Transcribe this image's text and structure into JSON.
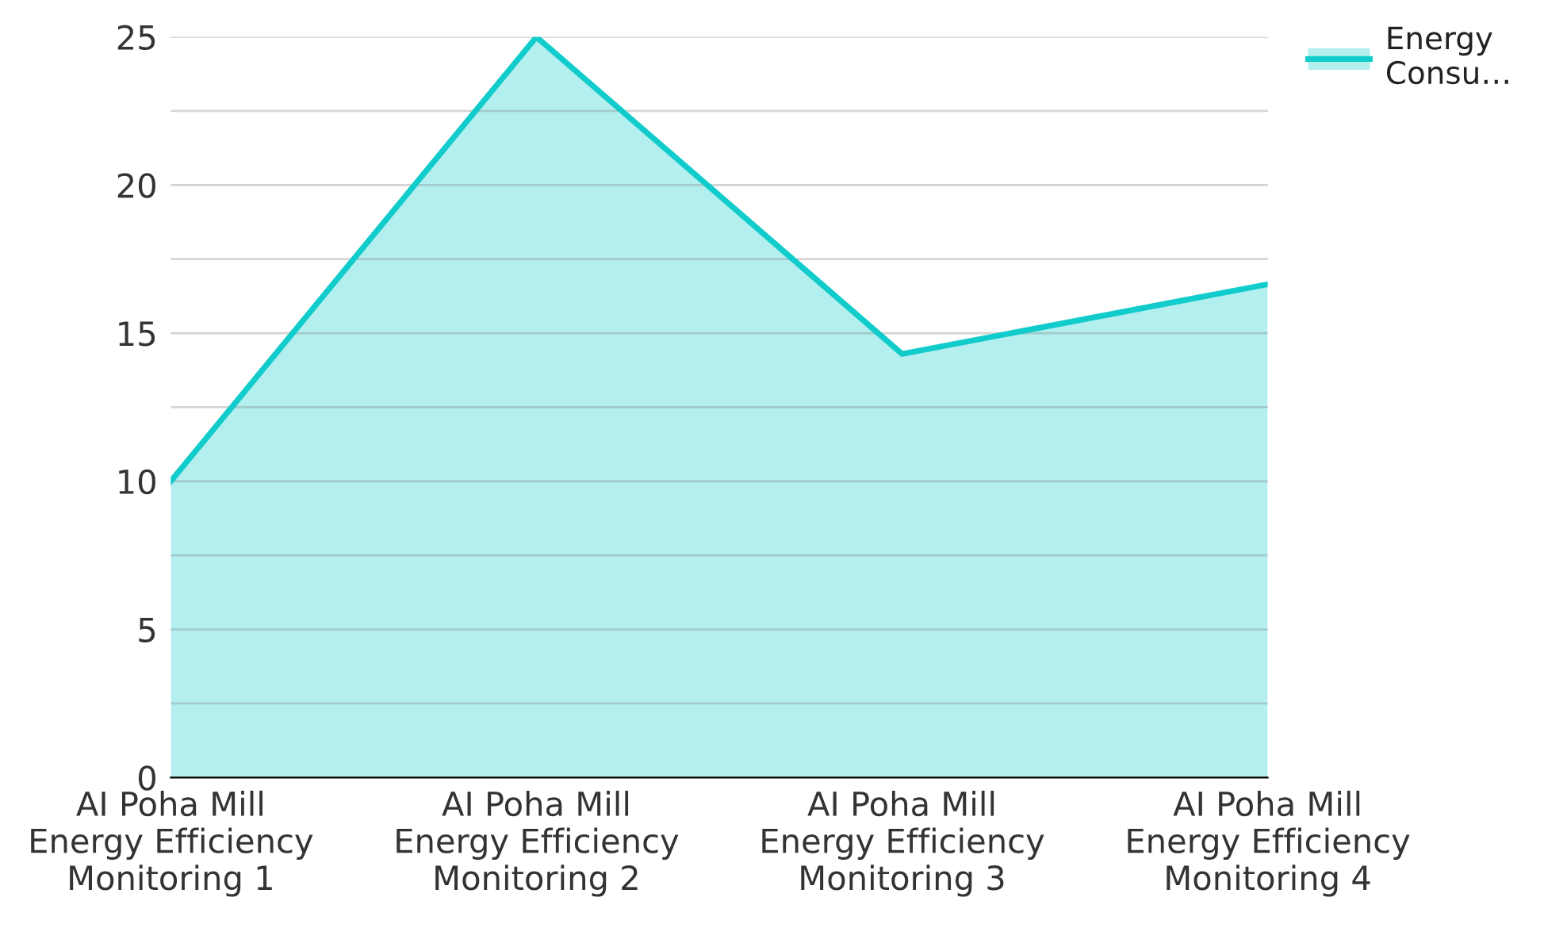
{
  "chart_data": {
    "type": "area",
    "categories": [
      "AI Poha Mill\nEnergy Efficiency\nMonitoring 1",
      "AI Poha Mill\nEnergy Efficiency\nMonitoring 2",
      "AI Poha Mill\nEnergy Efficiency\nMonitoring 3",
      "AI Poha Mill\nEnergy Efficiency\nMonitoring 4"
    ],
    "series": [
      {
        "name": "Energy\nConsu…",
        "color": "#12cccc",
        "values": [
          10,
          25,
          14.3,
          16.65
        ]
      }
    ],
    "ylim": [
      0,
      25
    ],
    "yticks": [
      0,
      {
        "value": 2.5,
        "label": null
      },
      5,
      {
        "value": 7.5,
        "label": null
      },
      10,
      {
        "value": 12.5,
        "label": null
      },
      15,
      {
        "value": 17.5,
        "label": null
      },
      20,
      {
        "value": 22.5,
        "label": null
      },
      25
    ],
    "grid": "y",
    "legend": "top right"
  }
}
